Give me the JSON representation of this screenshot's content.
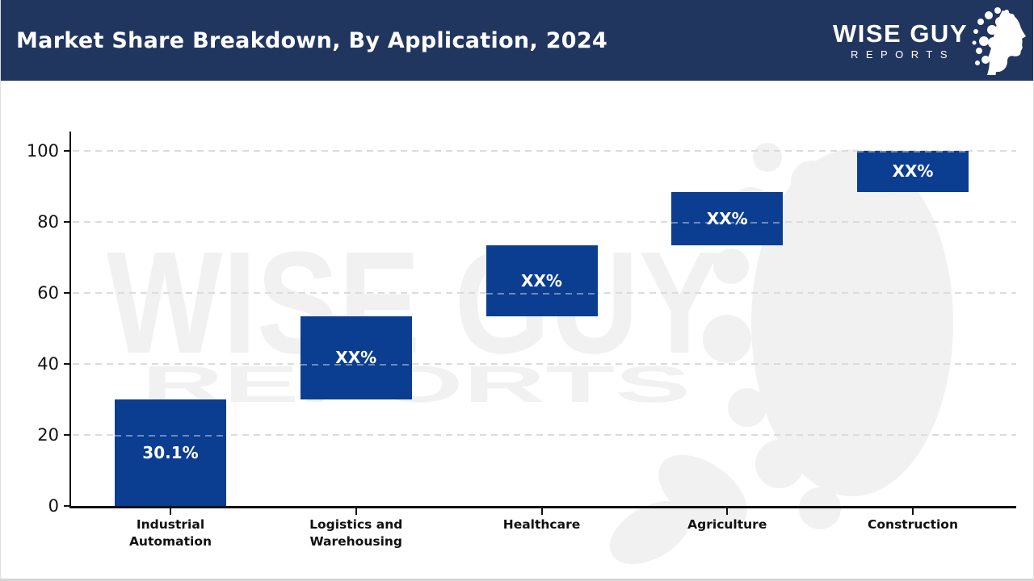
{
  "header": {
    "title": "Market Share Breakdown, By Application, 2024",
    "logo": {
      "line1": "WISE GUY",
      "line2": "REPORTS"
    }
  },
  "watermark": {
    "line1": "WISE GUY",
    "line2": "REPORTS"
  },
  "colors": {
    "header_bg": "#21365F",
    "bar": "#0B3D91",
    "bar_label": "#FFFFFF",
    "grid": "#DCDCDC",
    "axis": "#111111",
    "watermark": "#F1F1F1",
    "page_bg": "#FFFFFF"
  },
  "chart_data": {
    "type": "bar",
    "subtype": "waterfall",
    "title": "Market Share Breakdown, By Application, 2024",
    "xlabel": "",
    "ylabel": "",
    "ylim": [
      0,
      100
    ],
    "yticks": [
      0,
      20,
      40,
      60,
      80,
      100
    ],
    "grid": "horizontal-dashed",
    "legend": "none",
    "categories": [
      [
        "Industrial",
        "Automation"
      ],
      [
        "Logistics and",
        "Warehousing"
      ],
      [
        "Healthcare"
      ],
      [
        "Agriculture"
      ],
      [
        "Construction"
      ]
    ],
    "bars": [
      {
        "name": "Industrial Automation",
        "start": 0,
        "end": 30.1,
        "label": "30.1%"
      },
      {
        "name": "Logistics and Warehousing",
        "start": 30.1,
        "end": 53.5,
        "label": "XX%"
      },
      {
        "name": "Healthcare",
        "start": 53.5,
        "end": 73.5,
        "label": "XX%"
      },
      {
        "name": "Agriculture",
        "start": 73.5,
        "end": 88.5,
        "label": "XX%"
      },
      {
        "name": "Construction",
        "start": 88.5,
        "end": 100,
        "label": "XX%"
      }
    ]
  }
}
